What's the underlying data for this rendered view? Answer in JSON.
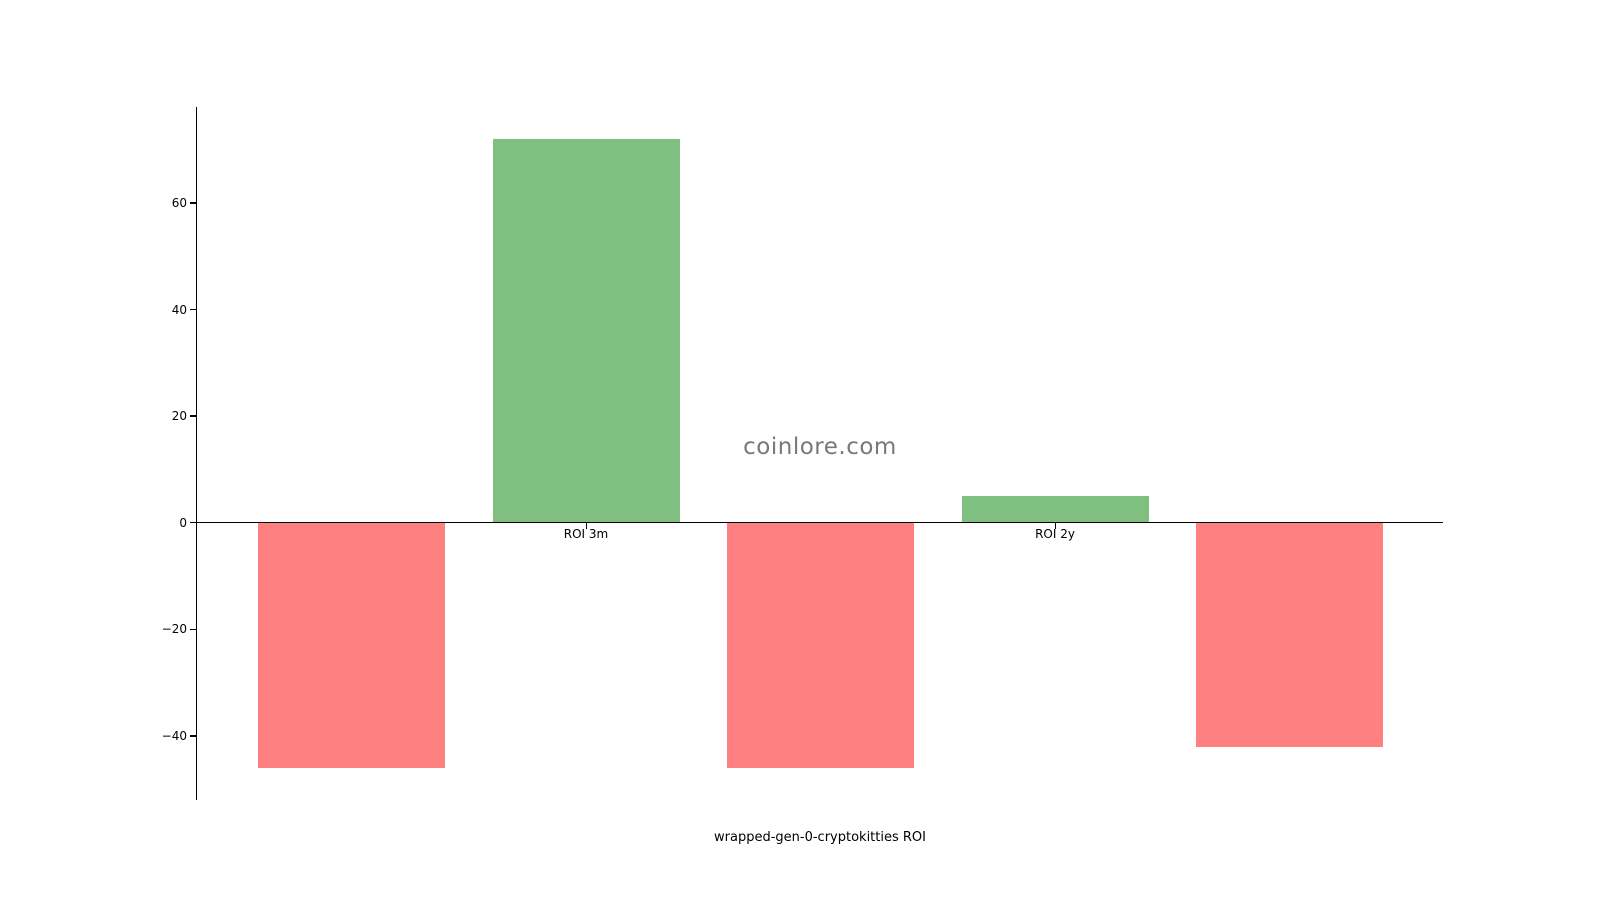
{
  "chart_data": {
    "type": "bar",
    "title": "wrapped-gen-0-cryptokitties ROI",
    "watermark": "coinlore.com",
    "categories": [
      "",
      "ROI 3m",
      "",
      "ROI 2y",
      ""
    ],
    "values": [
      -46,
      72,
      -46,
      5,
      -42
    ],
    "yticks": [
      60,
      40,
      20,
      0,
      -20,
      -40
    ],
    "ylim": [
      -52,
      78
    ],
    "xlabel": "",
    "ylabel": "",
    "grid": false,
    "legend_position": "none",
    "colors": {
      "positive_bar": "#7fbf7f",
      "negative_bar": "#ff8080",
      "axis": "#000000",
      "tick_text": "#000000",
      "title_text": "#000000",
      "watermark_text": "#787878"
    }
  }
}
